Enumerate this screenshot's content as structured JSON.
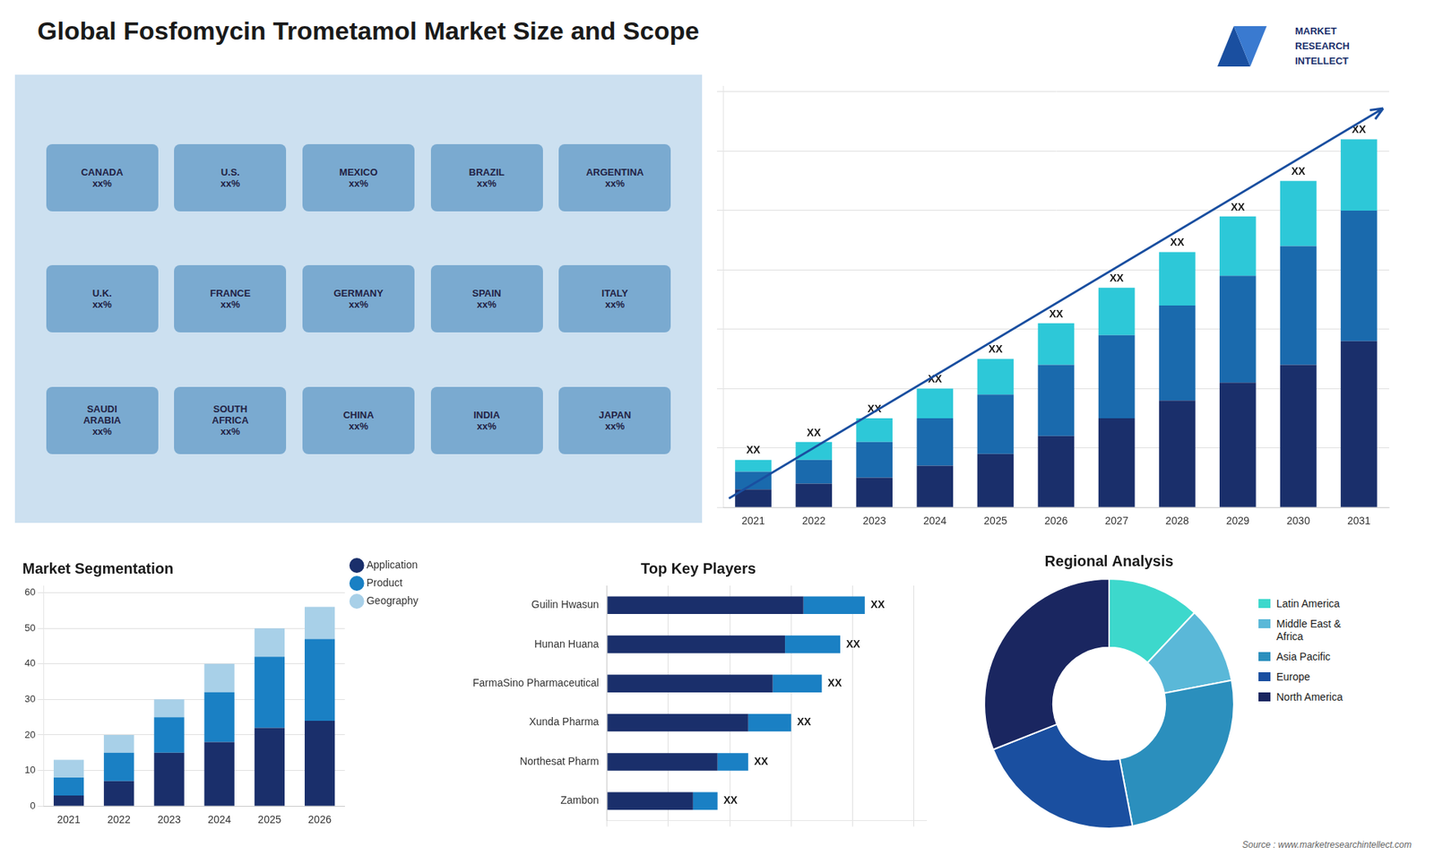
{
  "title": "Global Fosfomycin Trometamol Market Size and Scope",
  "annotations": [
    "MARKET",
    "RESEARCH",
    "INTELLECT"
  ],
  "source": "Source : www.marketresearchintellect.com",
  "chart_data": [
    {
      "type": "map",
      "annotations": [
        "CANADA\nxx%",
        "U.S.\nxx%",
        "MEXICO\nxx%",
        "BRAZIL\nxx%",
        "ARGENTINA\nxx%",
        "U.K.\nxx%",
        "FRANCE\nxx%",
        "GERMANY\nxx%",
        "SPAIN\nxx%",
        "ITALY\nxx%",
        "SAUDI\nARABIA\nxx%",
        "SOUTH\nAFRICA\nxx%",
        "CHINA\nxx%",
        "INDIA\nxx%",
        "JAPAN\nxx%"
      ]
    },
    {
      "type": "bar",
      "stacked": true,
      "categories": [
        "2021",
        "2022",
        "2023",
        "2024",
        "2025",
        "2026",
        "2027",
        "2028",
        "2029",
        "2030",
        "2031"
      ],
      "series": [
        {
          "color": "#1a2f6b",
          "values": [
            3,
            4,
            5,
            7,
            9,
            12,
            15,
            18,
            21,
            24,
            28
          ]
        },
        {
          "color": "#1a6aad",
          "values": [
            3,
            4,
            6,
            8,
            10,
            12,
            14,
            16,
            18,
            20,
            22
          ]
        },
        {
          "color": "#2dc8d8",
          "values": [
            2,
            3,
            4,
            5,
            6,
            7,
            8,
            9,
            10,
            11,
            12
          ]
        }
      ],
      "ylim": [
        0,
        71
      ],
      "yticks": [
        0,
        10,
        20,
        30,
        40,
        50,
        60,
        70
      ],
      "grid": true,
      "tick_labels": "x",
      "annotations": [
        "XX",
        "XX",
        "XX",
        "XX",
        "XX",
        "XX",
        "XX",
        "XX",
        "XX",
        "XX",
        "XX"
      ]
    },
    {
      "type": "bar",
      "stacked": true,
      "title": "Market Segmentation",
      "categories": [
        "2021",
        "2022",
        "2023",
        "2024",
        "2025",
        "2026"
      ],
      "series": [
        {
          "name": "Application",
          "color": "#1a2f6b",
          "values": [
            3,
            7,
            15,
            18,
            22,
            24
          ]
        },
        {
          "name": "Product",
          "color": "#1a80c4",
          "values": [
            5,
            8,
            10,
            14,
            20,
            23
          ]
        },
        {
          "name": "Geography",
          "color": "#a8d0e8",
          "values": [
            5,
            5,
            5,
            8,
            8,
            9
          ]
        }
      ],
      "ylim": [
        0,
        62
      ],
      "yticks": [
        0,
        10,
        20,
        30,
        40,
        50,
        60
      ],
      "grid": true,
      "legend": "right"
    },
    {
      "type": "bar",
      "stacked": true,
      "orientation": "horizontal",
      "title": "Top Key Players",
      "categories": [
        "Guilin Hwasun",
        "Hunan Huana",
        "FarmaSino Pharmaceutical",
        "Xunda Pharma",
        "Northesat Pharm",
        "Zambon"
      ],
      "series": [
        {
          "color": "#1a2f6b",
          "values": [
            32,
            29,
            27,
            23,
            18,
            14
          ]
        },
        {
          "color": "#1a80c4",
          "values": [
            10,
            9,
            8,
            7,
            5,
            4
          ]
        }
      ],
      "xlim": [
        0,
        52
      ],
      "xticks": [
        0,
        10,
        20,
        30,
        40,
        50
      ],
      "grid": true,
      "tick_labels": "y",
      "annotations": [
        "XX",
        "XX",
        "XX",
        "XX",
        "XX",
        "XX"
      ]
    },
    {
      "type": "doughnut",
      "title": "Regional Analysis",
      "categories": [
        "Latin America",
        "Middle East &\nAfrica",
        "Asia Pacific",
        "Europe",
        "North America"
      ],
      "values": [
        12,
        10,
        25,
        22,
        31
      ],
      "colors": [
        "#3dd8cc",
        "#5ab8d8",
        "#2b8fbd",
        "#1a4fa0",
        "#1a2660"
      ],
      "legend": "right"
    }
  ]
}
